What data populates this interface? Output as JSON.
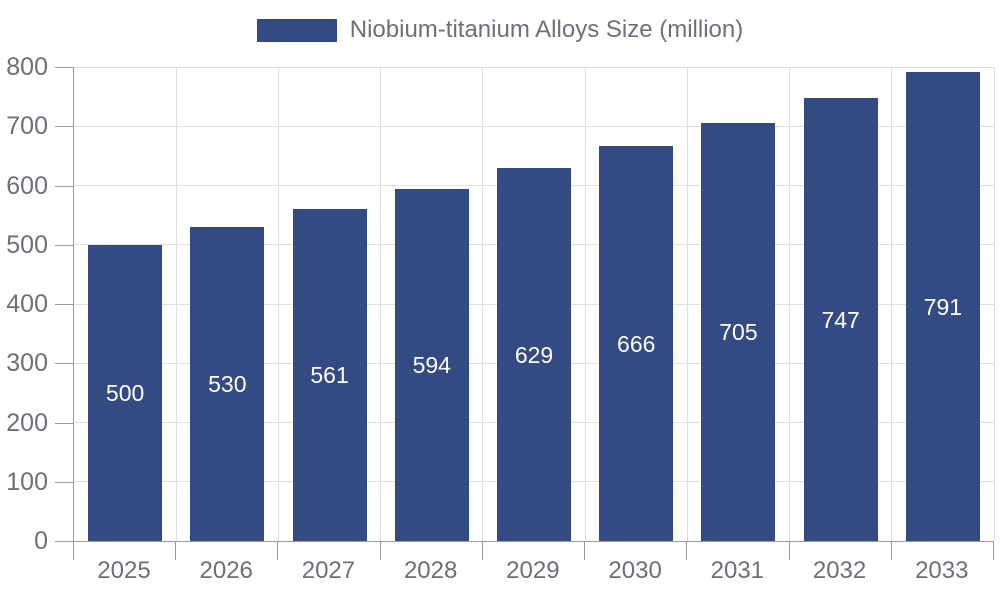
{
  "chart_data": {
    "type": "bar",
    "title": "Niobium-titanium Alloys Size (million)",
    "legend_entries": [
      "Niobium-titanium Alloys Size (million)"
    ],
    "legend_position": "top",
    "categories": [
      "2025",
      "2026",
      "2027",
      "2028",
      "2029",
      "2030",
      "2031",
      "2032",
      "2033"
    ],
    "values": [
      500,
      530,
      561,
      594,
      629,
      666,
      705,
      747,
      791
    ],
    "xlabel": "",
    "ylabel": "",
    "ylim": [
      0,
      800
    ],
    "yticks": [
      "0",
      "100",
      "200",
      "300",
      "400",
      "500",
      "600",
      "700",
      "800"
    ],
    "grid": true,
    "colors": {
      "bar": "#344a83",
      "background": "#ffffff",
      "grid_line": "#e0e0e0",
      "axis_line": "#999999",
      "axis_text": "#6e7079",
      "value_label": "#ffffff"
    }
  }
}
